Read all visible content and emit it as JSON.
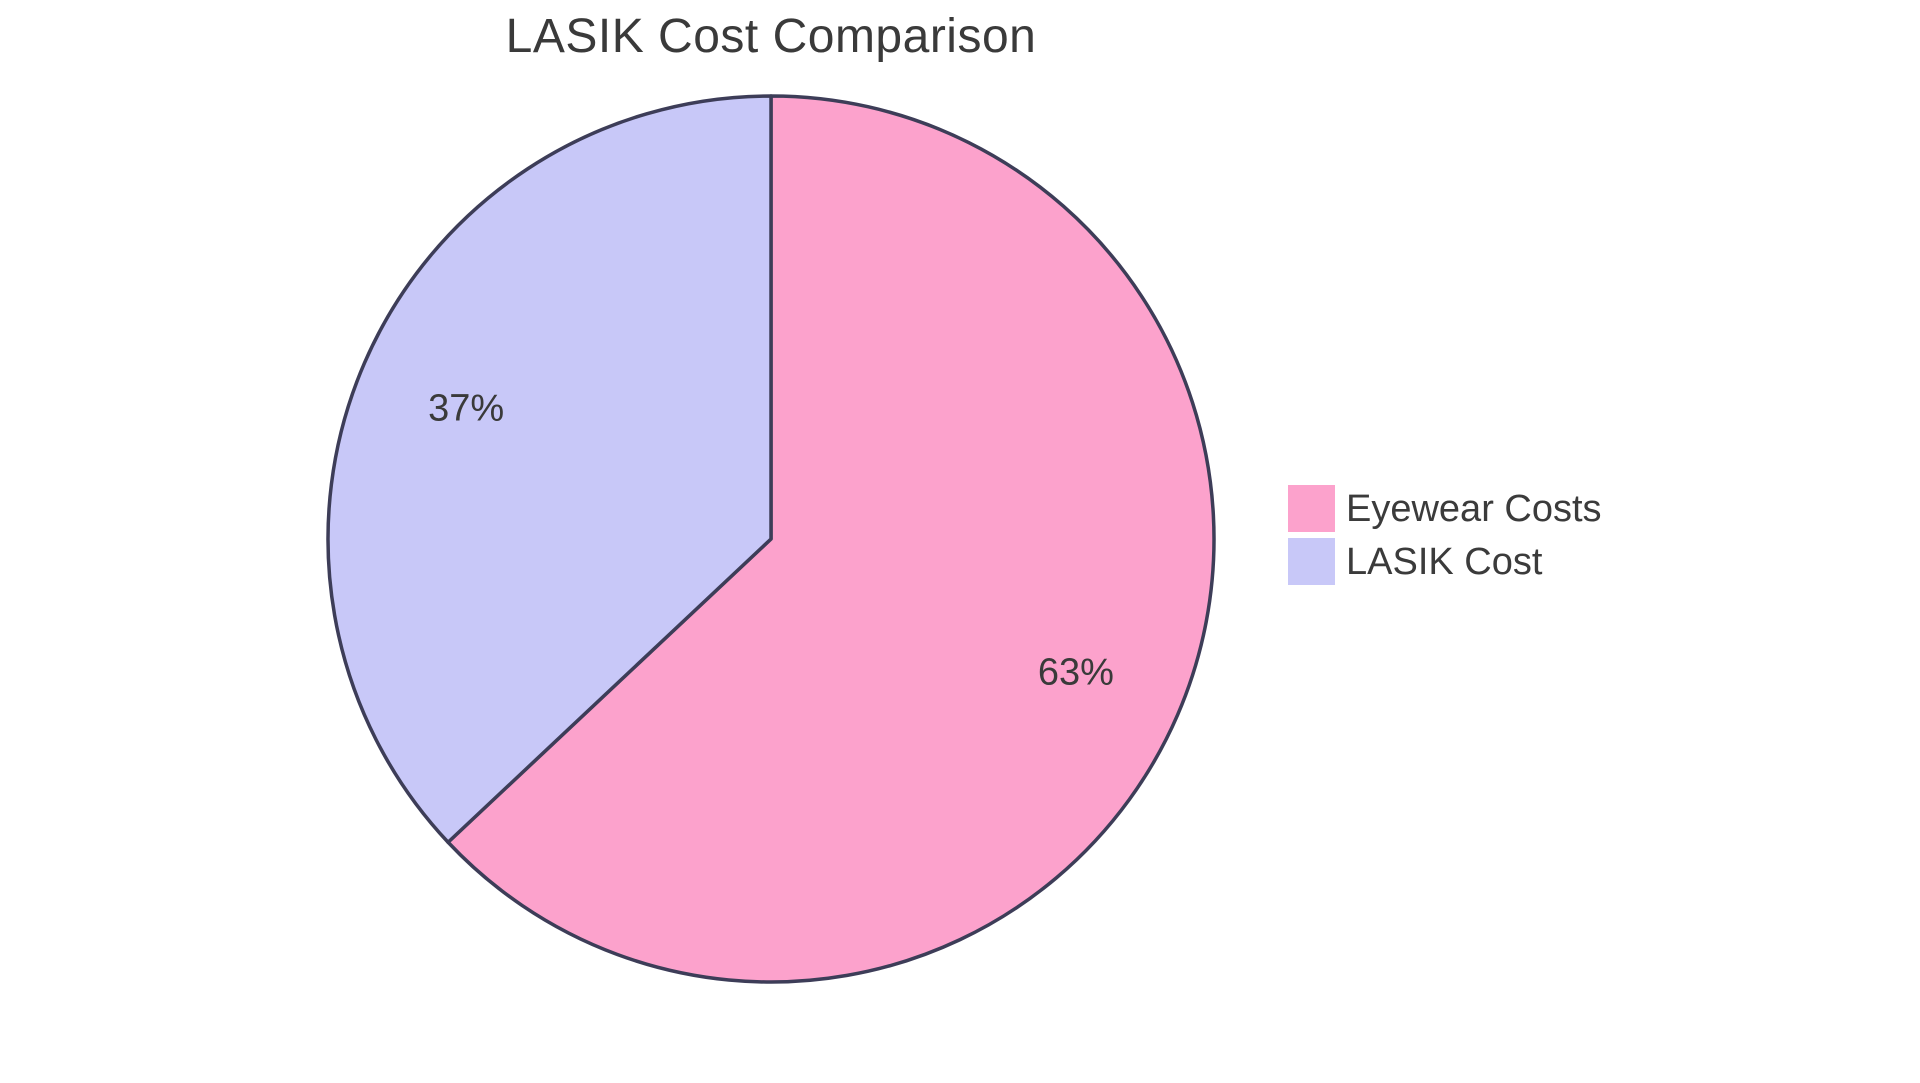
{
  "chart_data": {
    "type": "pie",
    "title": "LASIK Cost Comparison",
    "slices": [
      {
        "label": "Eyewear Costs",
        "value": 63,
        "pct_label": "63%",
        "color": "#FCA2CC"
      },
      {
        "label": "LASIK Cost",
        "value": 37,
        "pct_label": "37%",
        "color": "#C8C8F8"
      }
    ],
    "start_angle": "top",
    "direction": "clockwise",
    "legend_position": "right",
    "edge_color": "#3D3D58",
    "text_color": "#3A3A3A",
    "background": "#FFFFFF"
  }
}
